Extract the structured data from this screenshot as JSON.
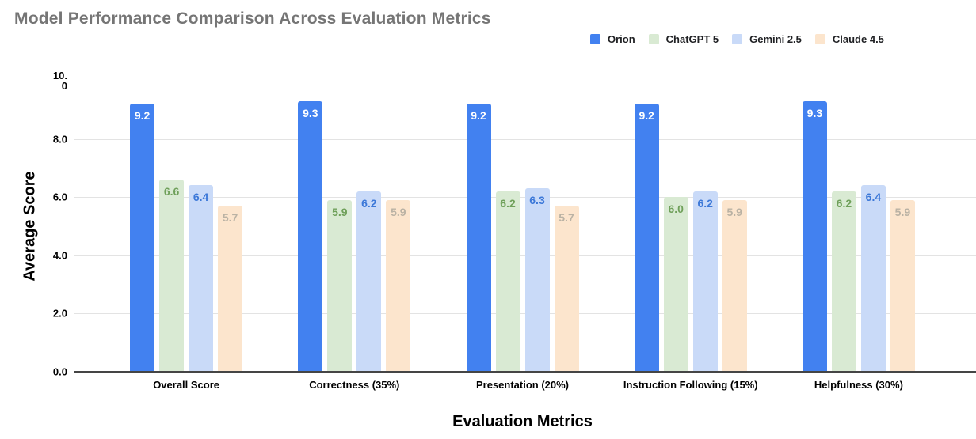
{
  "style": {
    "background": "#ffffff",
    "title_color": "#757575",
    "text": "#000000",
    "legend_text": "#202124",
    "gridline": "#e3e3e3",
    "baseline": "#454545"
  },
  "chart_data": {
    "type": "bar",
    "title": "Model Performance Comparison Across Evaluation Metrics",
    "xlabel": "Evaluation Metrics",
    "ylabel": "Average Score",
    "ylim": [
      0,
      10
    ],
    "grid": true,
    "legend_position": "top-right",
    "categories": [
      "Overall Score",
      "Correctness (35%)",
      "Presentation (20%)",
      "Instruction Following (15%)",
      "Helpfulness (30%)"
    ],
    "y_ticks": [
      0,
      2,
      4,
      6,
      8,
      10
    ],
    "y_tick_labels": [
      "0.0",
      "2.0",
      "4.0",
      "6.0",
      "8.0",
      "10.\n0"
    ],
    "series": [
      {
        "name": "Orion",
        "color": "#4281F0",
        "label_color": "#ffffff",
        "values": [
          9.2,
          9.3,
          9.2,
          9.2,
          9.3
        ]
      },
      {
        "name": "ChatGPT 5",
        "color": "#D9EAD3",
        "label_color": "#6FA05A",
        "values": [
          6.6,
          5.9,
          6.2,
          6.0,
          6.2
        ]
      },
      {
        "name": "Gemini 2.5",
        "color": "#C9DAF8",
        "label_color": "#3C78D8",
        "values": [
          6.4,
          6.2,
          6.3,
          6.2,
          6.4
        ]
      },
      {
        "name": "Claude 4.5",
        "color": "#FCE5CD",
        "label_color": "#BAB2A4",
        "values": [
          5.7,
          5.9,
          5.7,
          5.9,
          5.9
        ]
      }
    ]
  }
}
